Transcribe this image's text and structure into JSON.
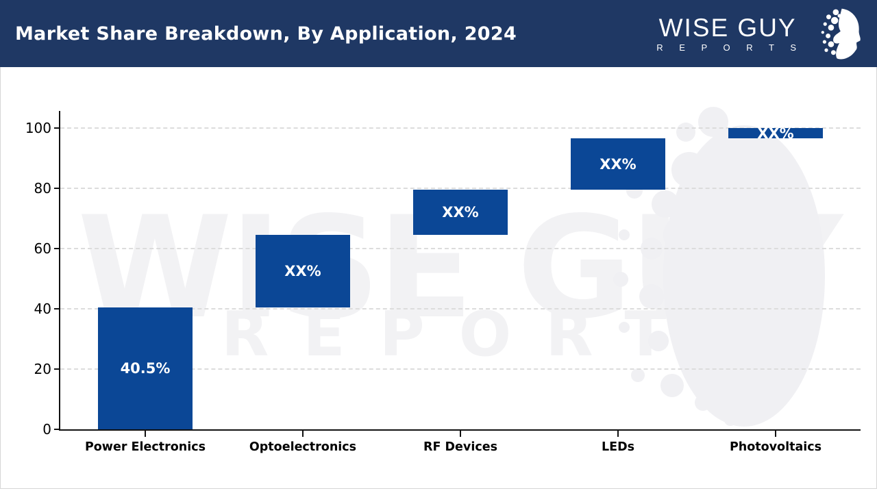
{
  "header": {
    "title": "Market Share Breakdown, By Application, 2024",
    "bg_color": "#1f3864",
    "logo": {
      "line1": "WISE GUY",
      "line2": "R E P O R T S"
    }
  },
  "watermark": {
    "line1": "WISE GUY",
    "line2": "REPORTS"
  },
  "chart_data": {
    "type": "bar",
    "subtype": "waterfall",
    "title": "Market Share Breakdown, By Application, 2024",
    "categories": [
      "Power Electronics",
      "Optoelectronics",
      "RF Devices",
      "LEDs",
      "Photovoltaics"
    ],
    "bars": [
      {
        "category": "Power Electronics",
        "start": 0,
        "end": 40.5,
        "label": "40.5%"
      },
      {
        "category": "Optoelectronics",
        "start": 40.5,
        "end": 64.5,
        "label": "XX%"
      },
      {
        "category": "RF Devices",
        "start": 64.5,
        "end": 79.5,
        "label": "XX%"
      },
      {
        "category": "LEDs",
        "start": 79.5,
        "end": 96.5,
        "label": "XX%"
      },
      {
        "category": "Photovoltaics",
        "start": 96.5,
        "end": 100,
        "label": "XX%"
      }
    ],
    "y_ticks": [
      0,
      20,
      40,
      60,
      80,
      100
    ],
    "ylim": [
      0,
      105
    ],
    "grid": "horizontal-dashed",
    "legend": "none",
    "bar_color": "#0b4796",
    "bar_label_color": "#ffffff",
    "axis_color": "#111111",
    "gridline_color": "#dcdcdc"
  }
}
